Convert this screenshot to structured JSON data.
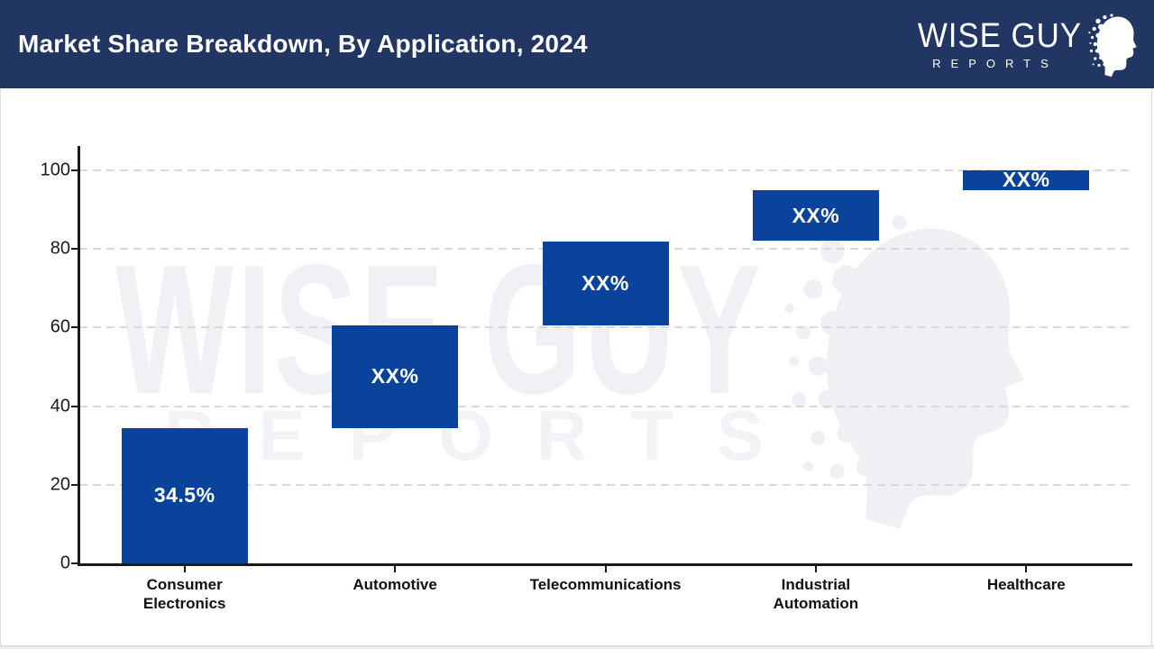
{
  "header": {
    "title": "Market Share Breakdown, By Application, 2024",
    "brand": {
      "name": "WISE GUY",
      "subtitle": "REPORTS"
    }
  },
  "watermark": {
    "name": "WISE GUY",
    "subtitle": "REPORTS"
  },
  "chart_data": {
    "type": "bar",
    "variant": "floating-waterfall-segments",
    "title": "Market Share Breakdown, By Application, 2024",
    "categories": [
      "Consumer Electronics",
      "Automotive",
      "Telecommunications",
      "Industrial Automation",
      "Healthcare"
    ],
    "category_label_lines": [
      [
        "Consumer",
        "Electronics"
      ],
      [
        "Automotive"
      ],
      [
        "Telecommunications"
      ],
      [
        "Industrial",
        "Automation"
      ],
      [
        "Healthcare"
      ]
    ],
    "segments": [
      {
        "category": "Consumer Electronics",
        "start": 0,
        "end": 34.5,
        "label": "34.5%"
      },
      {
        "category": "Automotive",
        "start": 34.5,
        "end": 60.5,
        "label": "XX%"
      },
      {
        "category": "Telecommunications",
        "start": 60.5,
        "end": 82,
        "label": "XX%"
      },
      {
        "category": "Industrial Automation",
        "start": 82,
        "end": 95,
        "label": "XX%"
      },
      {
        "category": "Healthcare",
        "start": 95,
        "end": 100,
        "label": "XX%"
      }
    ],
    "bar_value_labels": [
      "34.5%",
      "XX%",
      "XX%",
      "XX%",
      "XX%"
    ],
    "xlabel": "",
    "ylabel": "",
    "ylim": [
      0,
      100
    ],
    "yticks": [
      0,
      20,
      40,
      60,
      80,
      100
    ],
    "grid": "horizontal-dashed",
    "legend": "none",
    "bar_color": "#0a439c",
    "bar_label_color": "#ffffff",
    "header_color": "#213663"
  }
}
